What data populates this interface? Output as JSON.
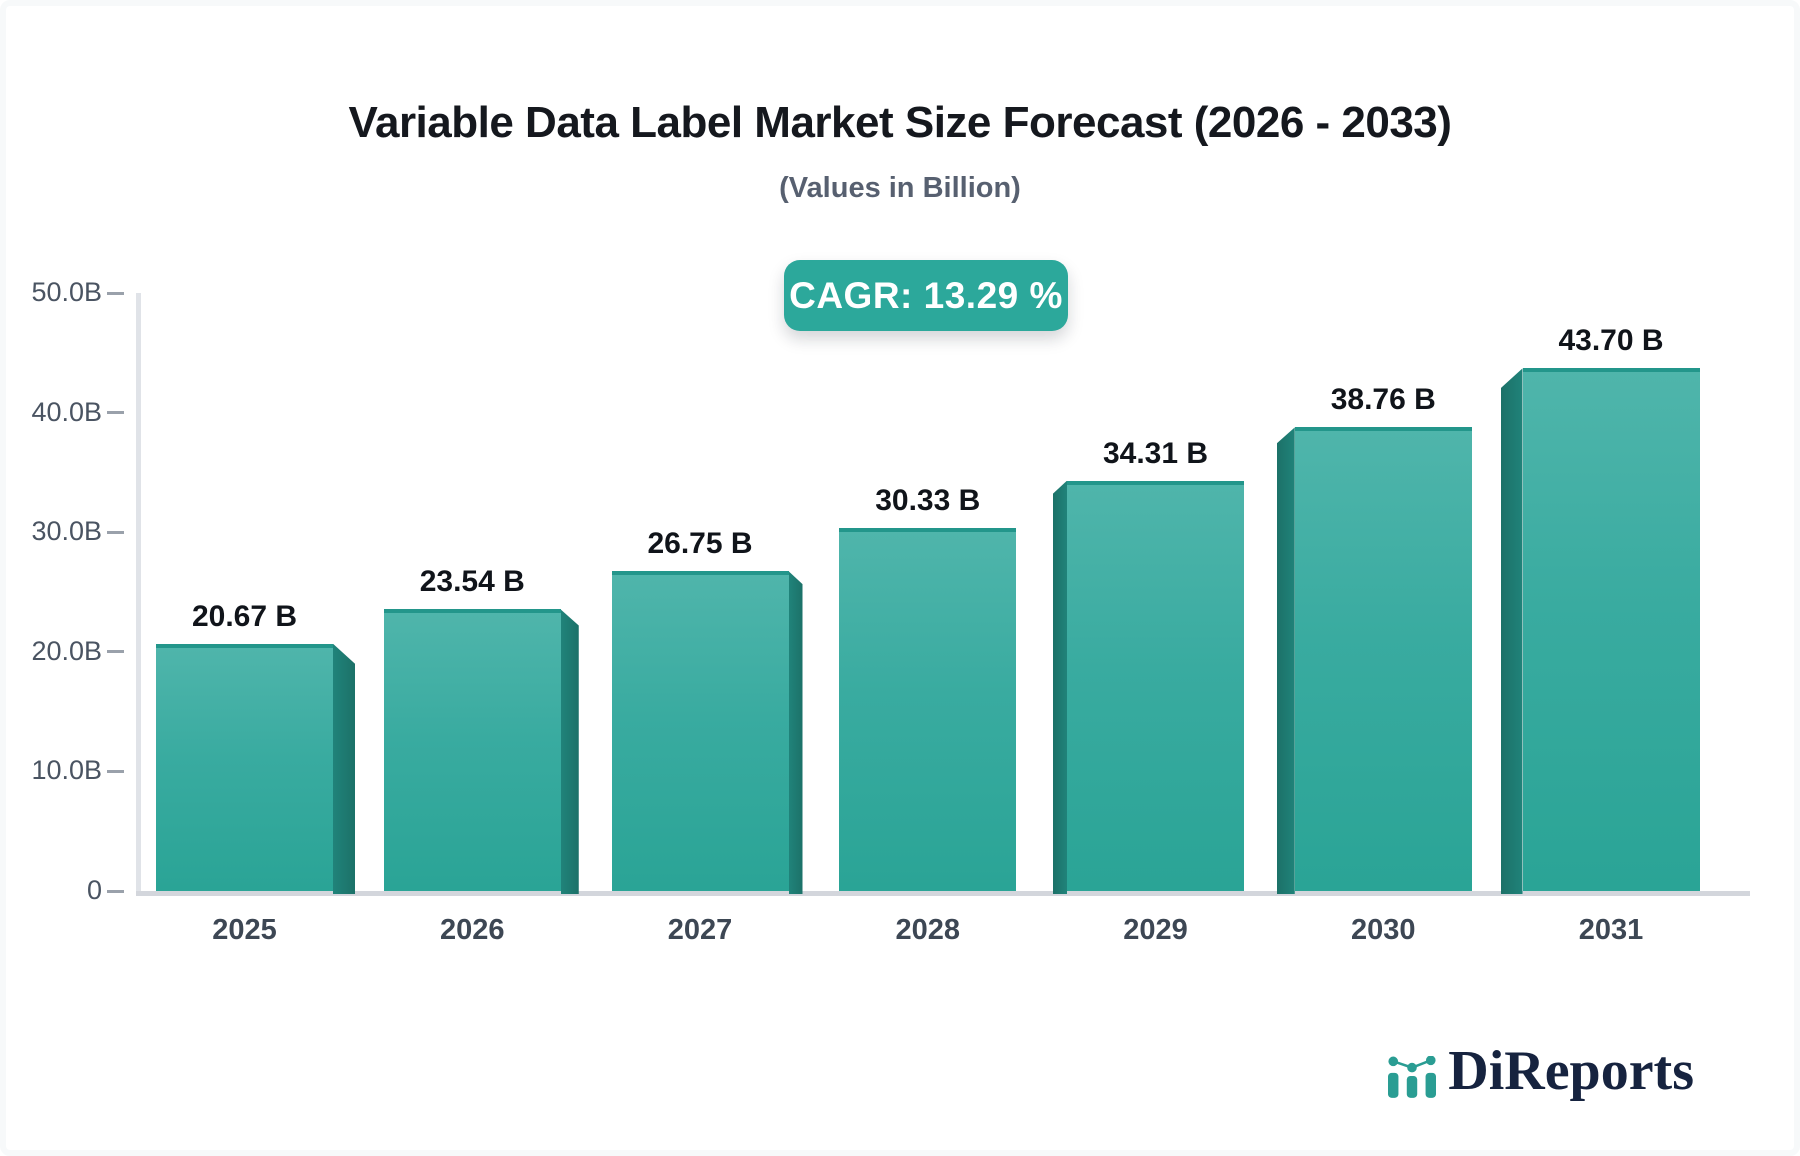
{
  "chart_data": {
    "type": "bar",
    "title": "Variable Data Label Market Size Forecast (2026 - 2033)",
    "subtitle": "(Values in Billion)",
    "cagr_label": "CAGR: 13.29 %",
    "categories": [
      "2025",
      "2026",
      "2027",
      "2028",
      "2029",
      "2030",
      "2031"
    ],
    "values": [
      20.67,
      23.54,
      26.75,
      30.33,
      34.31,
      38.76,
      43.7
    ],
    "value_labels": [
      "20.67 B",
      "23.54 B",
      "26.75 B",
      "30.33 B",
      "34.31 B",
      "38.76 B",
      "43.70 B"
    ],
    "xlabel": "",
    "ylabel": "",
    "ylim": [
      0,
      50
    ],
    "y_ticks_top_down": [
      "50.0B",
      "40.0B",
      "30.0B",
      "20.0B",
      "10.0B",
      "0"
    ],
    "grid": false,
    "legend": "none",
    "colors": {
      "bar_face_top": "#4fb5ab",
      "bar_face_bottom": "#2aa496",
      "bar_top_edge": "#23968b",
      "bar_side_face": "#1e7c71",
      "badge_background": "#2ca89b",
      "badge_text": "#ffffff",
      "axis_line": "#e0e3e8",
      "baseline": "#d3d6dc"
    }
  },
  "footer": {
    "logo_text": "DiReports",
    "logo_icon": "bar-line-chart-icon",
    "logo_text_color": "#16233f",
    "logo_accent_color": "#2a9d93"
  }
}
